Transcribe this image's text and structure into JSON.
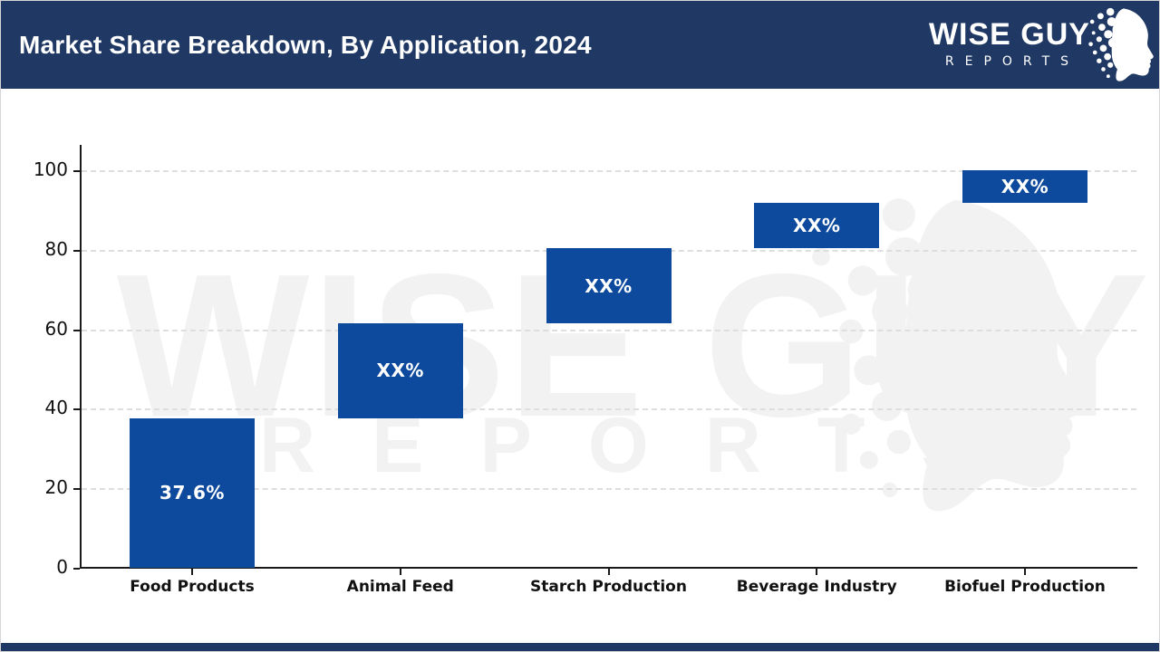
{
  "header": {
    "title": "Market Share Breakdown, By Application, 2024",
    "logo": {
      "line1": "WISE GUY",
      "line2": "REPORTS"
    }
  },
  "watermark": {
    "line1": "WISE GUY",
    "line2": "REPORTS"
  },
  "chart_data": {
    "type": "bar",
    "subtype": "waterfall",
    "title": "Market Share Breakdown, By Application, 2024",
    "categories": [
      "Food Products",
      "Animal Feed",
      "Starch Production",
      "Beverage Industry",
      "Biofuel Production"
    ],
    "segments": [
      {
        "category": "Food Products",
        "start": 0,
        "end": 37.6,
        "label": "37.6%"
      },
      {
        "category": "Animal Feed",
        "start": 37.6,
        "end": 61.5,
        "label": "XX%"
      },
      {
        "category": "Starch Production",
        "start": 61.5,
        "end": 80.4,
        "label": "XX%"
      },
      {
        "category": "Beverage Industry",
        "start": 80.4,
        "end": 91.7,
        "label": "XX%"
      },
      {
        "category": "Biofuel Production",
        "start": 91.7,
        "end": 100,
        "label": "XX%"
      }
    ],
    "yticks": [
      0,
      20,
      40,
      60,
      80,
      100
    ],
    "ylim": [
      0,
      106
    ],
    "xlabel": "",
    "ylabel": "",
    "grid": "horizontal-dashed",
    "legend": "none",
    "bar_color": "#0d4a9e",
    "label_color": "#ffffff"
  },
  "colors": {
    "header_bg": "#1f3864",
    "footer_bg": "#1f3864",
    "bar": "#0d4a9e",
    "grid": "#dedede",
    "axis": "#1a1a1a",
    "text": "#111111",
    "watermark": "#f2f2f2"
  }
}
